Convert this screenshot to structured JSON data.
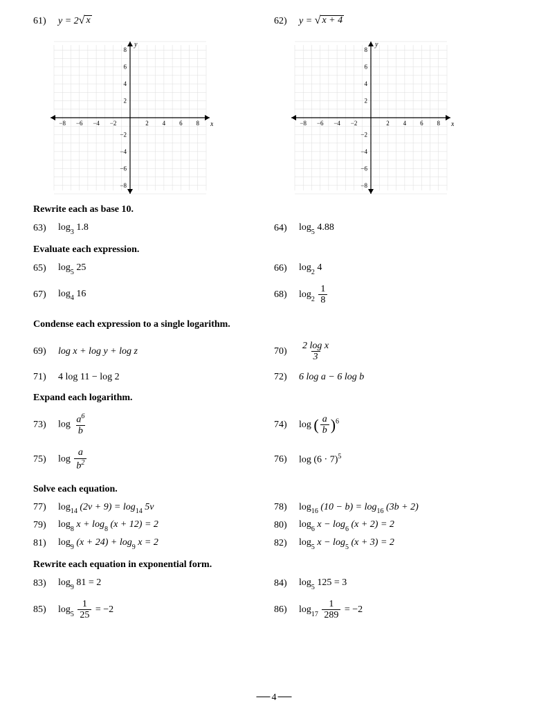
{
  "problems": {
    "p61": {
      "num": "61)",
      "eq_prefix": "y = 2",
      "sqrt_arg": "x"
    },
    "p62": {
      "num": "62)",
      "eq_prefix": "y = ",
      "sqrt_arg": "x + 4"
    },
    "p63": {
      "num": "63)",
      "expr": "log",
      "sub": "3",
      "val": " 1.8"
    },
    "p64": {
      "num": "64)",
      "expr": "log",
      "sub": "5",
      "val": " 4.88"
    },
    "p65": {
      "num": "65)",
      "expr": "log",
      "sub": "5",
      "val": " 25"
    },
    "p66": {
      "num": "66)",
      "expr": "log",
      "sub": "2",
      "val": " 4"
    },
    "p67": {
      "num": "67)",
      "expr": "log",
      "sub": "4",
      "val": " 16"
    },
    "p68": {
      "num": "68)",
      "expr": "log",
      "sub": "2",
      "frac_n": "1",
      "frac_d": "8"
    },
    "p69": {
      "num": "69)",
      "text": "log x + log y + log z"
    },
    "p70": {
      "num": "70)",
      "frac_n": "2 log x",
      "frac_d": "3"
    },
    "p71": {
      "num": "71)",
      "text": "4 log 11 − log 2"
    },
    "p72": {
      "num": "72)",
      "text": "6 log a − 6 log b"
    },
    "p73": {
      "num": "73)",
      "pre": "log ",
      "frac_n_base": "a",
      "frac_n_sup": "6",
      "frac_d": "b"
    },
    "p74": {
      "num": "74)",
      "pre": "log ",
      "inner_n": "a",
      "inner_d": "b",
      "outer_sup": "6"
    },
    "p75": {
      "num": "75)",
      "pre": "log ",
      "frac_n": "a",
      "frac_d_base": "b",
      "frac_d_sup": "2"
    },
    "p76": {
      "num": "76)",
      "pre": "log ",
      "paren": "(6 · 7)",
      "sup": "5"
    },
    "p77": {
      "num": "77)",
      "l1": "log",
      "s1": "14",
      "m1": " (2v + 9) = log",
      "s2": "14",
      "m2": " 5v"
    },
    "p78": {
      "num": "78)",
      "l1": "log",
      "s1": "16",
      "m1": " (10 − b) = log",
      "s2": "16",
      "m2": " (3b + 2)"
    },
    "p79": {
      "num": "79)",
      "l1": "log",
      "s1": "8",
      "m1": " x + log",
      "s2": "8",
      "m2": " (x + 12) = 2"
    },
    "p80": {
      "num": "80)",
      "l1": "log",
      "s1": "6",
      "m1": " x − log",
      "s2": "6",
      "m2": " (x + 2) = 2"
    },
    "p81": {
      "num": "81)",
      "l1": "log",
      "s1": "9",
      "m1": " (x + 24) + log",
      "s2": "9",
      "m2": " x = 2"
    },
    "p82": {
      "num": "82)",
      "l1": "log",
      "s1": "5",
      "m1": " x − log",
      "s2": "5",
      "m2": " (x + 3) = 2"
    },
    "p83": {
      "num": "83)",
      "l1": "log",
      "s1": "9",
      "m1": " 81 = 2"
    },
    "p84": {
      "num": "84)",
      "l1": "log",
      "s1": "5",
      "m1": " 125 = 3"
    },
    "p85": {
      "num": "85)",
      "l1": "log",
      "s1": "5",
      "frac_n": "1",
      "frac_d": "25",
      "tail": " = −2"
    },
    "p86": {
      "num": "86)",
      "l1": "log",
      "s1": "17",
      "frac_n": "1",
      "frac_d": "289",
      "tail": " = −2"
    }
  },
  "sections": {
    "s1": "Rewrite each as base 10.",
    "s2": "Evaluate each expression.",
    "s3": "Condense each expression to a single logarithm.",
    "s4": "Expand each logarithm.",
    "s5": "Solve each equation.",
    "s6": "Rewrite each equation in exponential form."
  },
  "graph": {
    "x_ticks": [
      "−8",
      "−6",
      "−4",
      "−2",
      "2",
      "4",
      "6",
      "8"
    ],
    "y_ticks": [
      "8",
      "6",
      "4",
      "2",
      "−2",
      "−4",
      "−6",
      "−8"
    ],
    "x_label": "x",
    "y_label": "y",
    "grid_color": "#dcdcdc",
    "axis_color": "#000000",
    "tick_fontsize": 9
  },
  "page_number": "4",
  "colors": {
    "text": "#000000",
    "bg": "#ffffff"
  }
}
